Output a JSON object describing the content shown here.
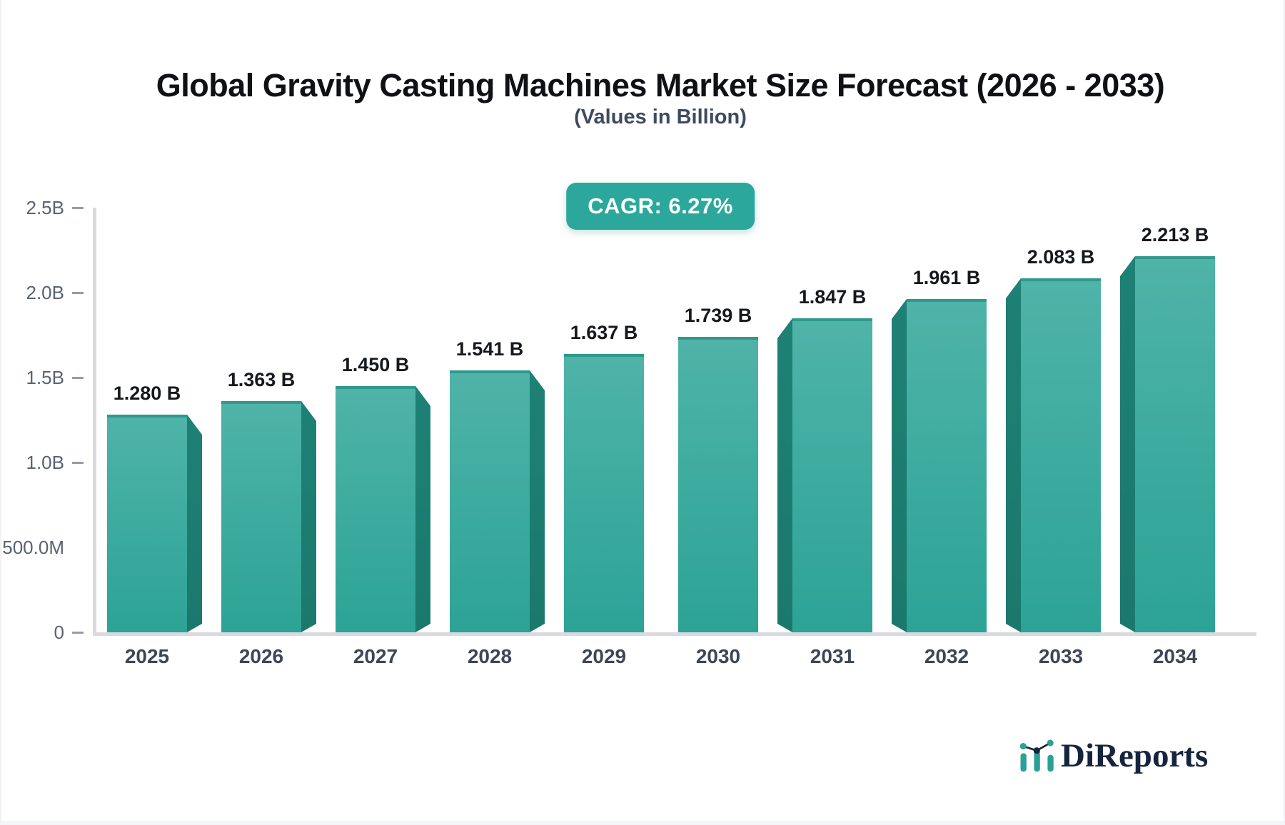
{
  "header": {
    "title": "Global Gravity Casting Machines Market Size Forecast (2026 - 2033)",
    "subtitle": "(Values in Billion)"
  },
  "badge": {
    "label": "CAGR: 6.27%"
  },
  "chart_data": {
    "type": "bar",
    "title": "Global Gravity Casting Machines Market Size Forecast (2026 - 2033)",
    "subtitle": "(Values in Billion)",
    "categories": [
      "2025",
      "2026",
      "2027",
      "2028",
      "2029",
      "2030",
      "2031",
      "2032",
      "2033",
      "2034"
    ],
    "values": [
      1.28,
      1.363,
      1.45,
      1.541,
      1.637,
      1.739,
      1.847,
      1.961,
      2.083,
      2.213
    ],
    "bar_labels": [
      "1.280 B",
      "1.363 B",
      "1.450 B",
      "1.541 B",
      "1.637 B",
      "1.739 B",
      "1.847 B",
      "1.961 B",
      "2.083 B",
      "2.213 B"
    ],
    "xlabel": "",
    "ylabel": "",
    "ylim": [
      0,
      2.5
    ],
    "grid": false,
    "legend": null,
    "yticks": [
      {
        "label": "2.5B",
        "value": 2.5,
        "dash": true
      },
      {
        "label": "2.0B",
        "value": 2.0,
        "dash": true
      },
      {
        "label": "1.5B",
        "value": 1.5,
        "dash": true
      },
      {
        "label": "1.0B",
        "value": 1.0,
        "dash": true
      },
      {
        "label": "500.0M",
        "value": 0.5,
        "dash": false
      },
      {
        "label": "0",
        "value": 0.0,
        "dash": true
      }
    ]
  },
  "logo": {
    "text": "DiReports",
    "icon": "mini-bar-chart-icon"
  },
  "colors": {
    "accent": "#2BA89B",
    "bar_face_top": "#4FB3A8",
    "bar_face_bottom": "#2CA396",
    "bar_top_edge": "#2E998C",
    "bar_side": "#1E8175",
    "bar_side_dark": "#1B786D",
    "axis": "#D8DADF",
    "tick": "#959CA8",
    "logo_navy": "#16243D"
  }
}
